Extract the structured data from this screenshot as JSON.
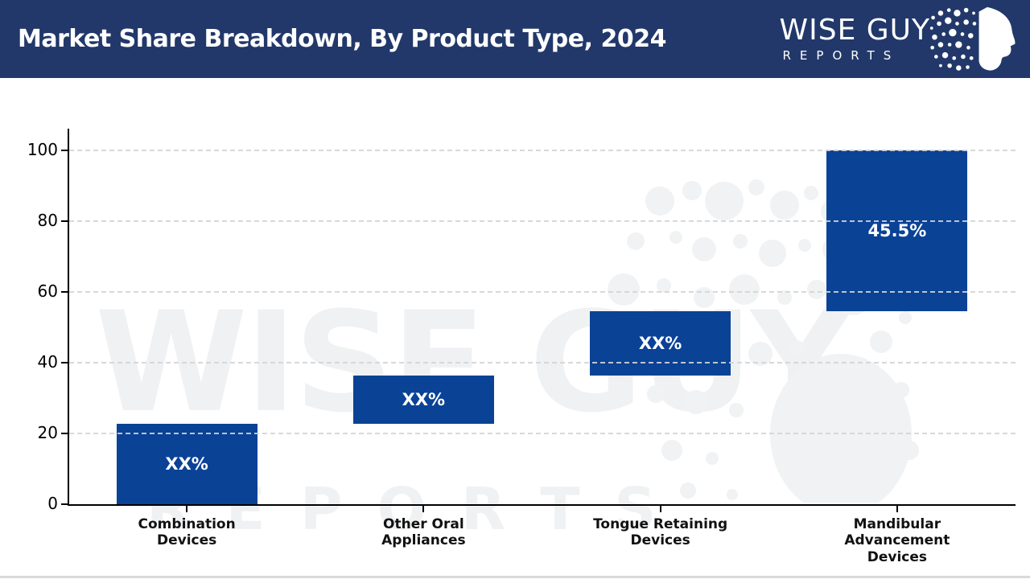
{
  "header": {
    "title": "Market Share Breakdown, By Product Type, 2024",
    "logo": {
      "line1": "WISE GUY",
      "line2": "REPORTS"
    }
  },
  "watermark": {
    "line1": "WISE GUY",
    "line2": "R E P O R T S"
  },
  "chart_data": {
    "type": "bar",
    "subtype": "floating-waterfall",
    "title": "Market Share Breakdown, By Product Type, 2024",
    "categories": [
      "Combination\nDevices",
      "Other Oral\nAppliances",
      "Tongue Retaining\nDevices",
      "Mandibular\nAdvancement\nDevices"
    ],
    "segments": [
      {
        "category": "Combination Devices",
        "start": 0,
        "end": 22.7,
        "label": "XX%"
      },
      {
        "category": "Other Oral Appliances",
        "start": 22.7,
        "end": 36.4,
        "label": "XX%"
      },
      {
        "category": "Tongue Retaining Devices",
        "start": 36.4,
        "end": 54.5,
        "label": "XX%"
      },
      {
        "category": "Mandibular Advancement Devices",
        "start": 54.5,
        "end": 100,
        "label": "45.5%",
        "value": 45.5
      }
    ],
    "xlabel": "",
    "ylabel": "",
    "ylim": [
      0,
      100
    ],
    "yticks": [
      0,
      20,
      40,
      60,
      80,
      100
    ],
    "grid": "dashed horizontal",
    "legend": "none",
    "bar_color": "#0a4296",
    "bar_label_color": "#ffffff"
  },
  "colors": {
    "header_bg": "#22386a",
    "bar": "#0a4296",
    "watermark": "#eff1f3",
    "gridline": "#d4d4d4",
    "axis": "#000000"
  }
}
